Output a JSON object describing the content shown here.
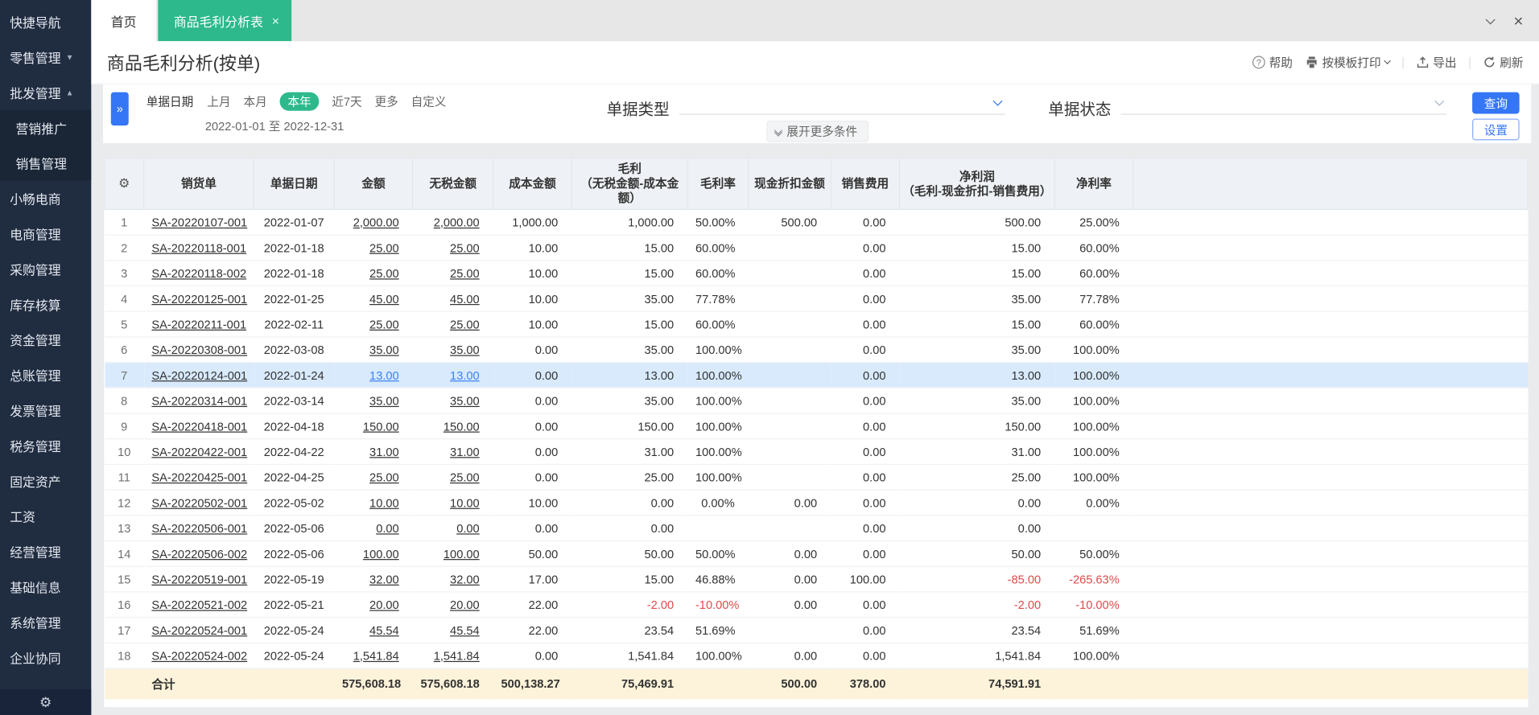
{
  "colors": {
    "accent_green": "#2db98c",
    "accent_blue": "#3476f5",
    "negative_red": "#e04b4b",
    "selected_row_bg": "#d8eafc",
    "total_row_bg": "#fcf3da"
  },
  "window": {
    "close_icon": "×"
  },
  "sidebar": {
    "gear_icon": "⚙",
    "items": [
      {
        "label": "快捷导航"
      },
      {
        "label": "零售管理",
        "arrow": "down"
      },
      {
        "label": "批发管理",
        "arrow": "up"
      },
      {
        "label": "营销推广",
        "sub": true
      },
      {
        "label": "销售管理",
        "sub": true
      },
      {
        "label": "小畅电商"
      },
      {
        "label": "电商管理"
      },
      {
        "label": "采购管理"
      },
      {
        "label": "库存核算"
      },
      {
        "label": "资金管理"
      },
      {
        "label": "总账管理"
      },
      {
        "label": "发票管理"
      },
      {
        "label": "税务管理"
      },
      {
        "label": "固定资产"
      },
      {
        "label": "工资"
      },
      {
        "label": "经营管理"
      },
      {
        "label": "基础信息"
      },
      {
        "label": "系统管理"
      },
      {
        "label": "企业协同"
      }
    ]
  },
  "tabs": {
    "home_label": "首页",
    "active_label": "商品毛利分析表",
    "close_icon": "×"
  },
  "page_header": {
    "title": "商品毛利分析(按单)",
    "help_label": "帮助",
    "print_label": "按模板打印",
    "export_label": "导出",
    "refresh_label": "刷新"
  },
  "filters": {
    "collapse_icon": "»",
    "date_label": "单据日期",
    "quick_options": [
      {
        "label": "上月"
      },
      {
        "label": "本月"
      },
      {
        "label": "本年",
        "selected": true
      },
      {
        "label": "近7天"
      },
      {
        "label": "更多"
      },
      {
        "label": "自定义"
      }
    ],
    "date_range": "2022-01-01 至 2022-12-31",
    "doc_type_label": "单据类型",
    "doc_status_label": "单据状态",
    "query_label": "查询",
    "settings_label": "设置",
    "expand_more_label": "展开更多条件"
  },
  "table": {
    "settings_icon": "⚙",
    "headers": [
      "销货单",
      "单据日期",
      "金额",
      "无税金额",
      "成本金额",
      "毛利\n（无税金额-成本金额）",
      "毛利率",
      "现金折扣金额",
      "销售费用",
      "净利润\n（毛利-现金折扣-销售费用）",
      "净利率"
    ],
    "selected_row_index": 6,
    "rows": [
      [
        "1",
        "SA-20220107-001",
        "2022-01-07",
        "2,000.00",
        "2,000.00",
        "1,000.00",
        "1,000.00",
        "50.00%",
        "500.00",
        "0.00",
        "500.00",
        "25.00%"
      ],
      [
        "2",
        "SA-20220118-001",
        "2022-01-18",
        "25.00",
        "25.00",
        "10.00",
        "15.00",
        "60.00%",
        "",
        "0.00",
        "15.00",
        "60.00%"
      ],
      [
        "3",
        "SA-20220118-002",
        "2022-01-18",
        "25.00",
        "25.00",
        "10.00",
        "15.00",
        "60.00%",
        "",
        "0.00",
        "15.00",
        "60.00%"
      ],
      [
        "4",
        "SA-20220125-001",
        "2022-01-25",
        "45.00",
        "45.00",
        "10.00",
        "35.00",
        "77.78%",
        "",
        "0.00",
        "35.00",
        "77.78%"
      ],
      [
        "5",
        "SA-20220211-001",
        "2022-02-11",
        "25.00",
        "25.00",
        "10.00",
        "15.00",
        "60.00%",
        "",
        "0.00",
        "15.00",
        "60.00%"
      ],
      [
        "6",
        "SA-20220308-001",
        "2022-03-08",
        "35.00",
        "35.00",
        "0.00",
        "35.00",
        "100.00%",
        "",
        "0.00",
        "35.00",
        "100.00%"
      ],
      [
        "7",
        "SA-20220124-001",
        "2022-01-24",
        "13.00",
        "13.00",
        "0.00",
        "13.00",
        "100.00%",
        "",
        "0.00",
        "13.00",
        "100.00%"
      ],
      [
        "8",
        "SA-20220314-001",
        "2022-03-14",
        "35.00",
        "35.00",
        "0.00",
        "35.00",
        "100.00%",
        "",
        "0.00",
        "35.00",
        "100.00%"
      ],
      [
        "9",
        "SA-20220418-001",
        "2022-04-18",
        "150.00",
        "150.00",
        "0.00",
        "150.00",
        "100.00%",
        "",
        "0.00",
        "150.00",
        "100.00%"
      ],
      [
        "10",
        "SA-20220422-001",
        "2022-04-22",
        "31.00",
        "31.00",
        "0.00",
        "31.00",
        "100.00%",
        "",
        "0.00",
        "31.00",
        "100.00%"
      ],
      [
        "11",
        "SA-20220425-001",
        "2022-04-25",
        "25.00",
        "25.00",
        "0.00",
        "25.00",
        "100.00%",
        "",
        "0.00",
        "25.00",
        "100.00%"
      ],
      [
        "12",
        "SA-20220502-001",
        "2022-05-02",
        "10.00",
        "10.00",
        "10.00",
        "0.00",
        "0.00%",
        "0.00",
        "0.00",
        "0.00",
        "0.00%"
      ],
      [
        "13",
        "SA-20220506-001",
        "2022-05-06",
        "0.00",
        "0.00",
        "0.00",
        "0.00",
        "",
        "",
        "0.00",
        "0.00",
        ""
      ],
      [
        "14",
        "SA-20220506-002",
        "2022-05-06",
        "100.00",
        "100.00",
        "50.00",
        "50.00",
        "50.00%",
        "0.00",
        "0.00",
        "50.00",
        "50.00%"
      ],
      [
        "15",
        "SA-20220519-001",
        "2022-05-19",
        "32.00",
        "32.00",
        "17.00",
        "15.00",
        "46.88%",
        "0.00",
        "100.00",
        "-85.00",
        "-265.63%"
      ],
      [
        "16",
        "SA-20220521-002",
        "2022-05-21",
        "20.00",
        "20.00",
        "22.00",
        "-2.00",
        "-10.00%",
        "0.00",
        "0.00",
        "-2.00",
        "-10.00%"
      ],
      [
        "17",
        "SA-20220524-001",
        "2022-05-24",
        "45.54",
        "45.54",
        "22.00",
        "23.54",
        "51.69%",
        "",
        "0.00",
        "23.54",
        "51.69%"
      ],
      [
        "18",
        "SA-20220524-002",
        "2022-05-24",
        "1,541.84",
        "1,541.84",
        "0.00",
        "1,541.84",
        "100.00%",
        "0.00",
        "0.00",
        "1,541.84",
        "100.00%"
      ]
    ],
    "total_row": [
      "",
      "合计",
      "",
      "575,608.18",
      "575,608.18",
      "500,138.27",
      "75,469.91",
      "",
      "500.00",
      "378.00",
      "74,591.91",
      ""
    ]
  }
}
